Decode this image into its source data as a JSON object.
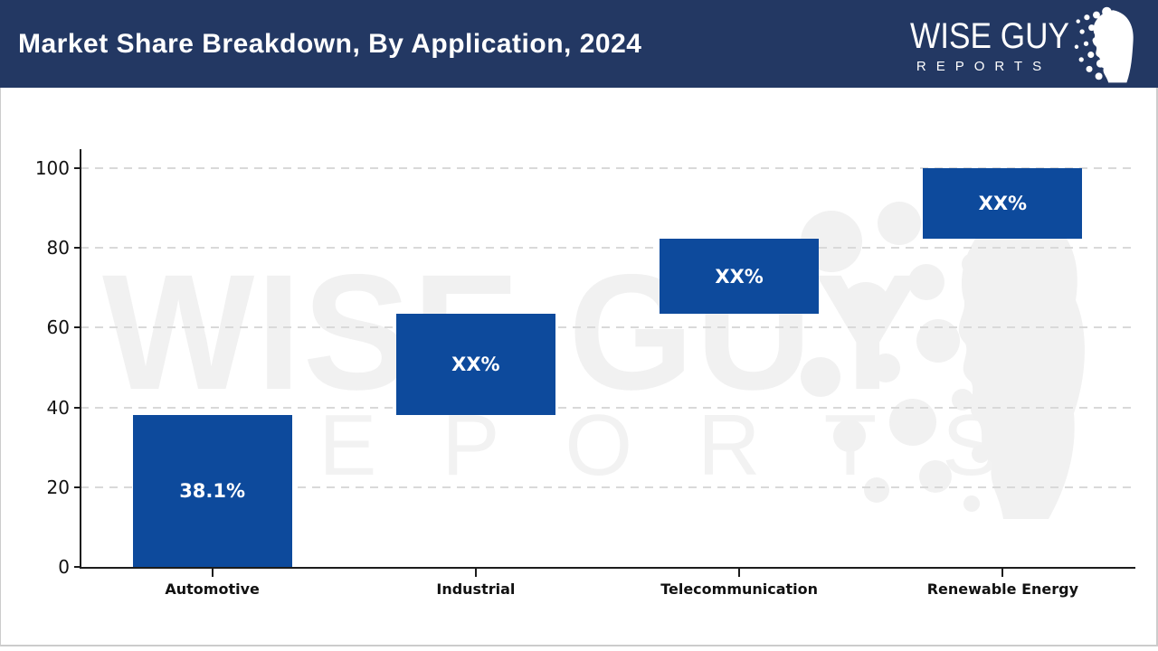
{
  "header": {
    "title": "Market Share Breakdown, By Application, 2024",
    "logo": {
      "wordmark": "WISE GUY",
      "subtitle": "REPORTS"
    }
  },
  "watermark": {
    "line1": "WISE GUY",
    "line2": "REPORTS"
  },
  "chart_data": {
    "type": "bar",
    "subtype": "floating-waterfall",
    "title": "Market Share Breakdown, By Application, 2024",
    "categories": [
      "Automotive",
      "Industrial",
      "Telecommunication",
      "Renewable Energy"
    ],
    "series": [
      {
        "name": "Market Share (%)",
        "segments": [
          {
            "category": "Automotive",
            "start": 0,
            "end": 38.1,
            "label": "38.1%"
          },
          {
            "category": "Industrial",
            "start": 38.1,
            "end": 63.4,
            "label": "XX%"
          },
          {
            "category": "Telecommunication",
            "start": 63.4,
            "end": 82.3,
            "label": "XX%"
          },
          {
            "category": "Renewable Energy",
            "start": 82.3,
            "end": 100,
            "label": "XX%"
          }
        ]
      }
    ],
    "xlabel": "",
    "ylabel": "",
    "ylim": [
      0,
      105
    ],
    "yticks": [
      0,
      20,
      40,
      60,
      80,
      100
    ],
    "grid": "horizontal-dashed",
    "legend": "none",
    "colors": {
      "bar": "#0D4A9C",
      "bar_label": "#FFFFFF",
      "grid": "#D9D9D9",
      "axis": "#1C1C1C",
      "header_bg": "#233863",
      "watermark": "#F1F1F1"
    }
  }
}
